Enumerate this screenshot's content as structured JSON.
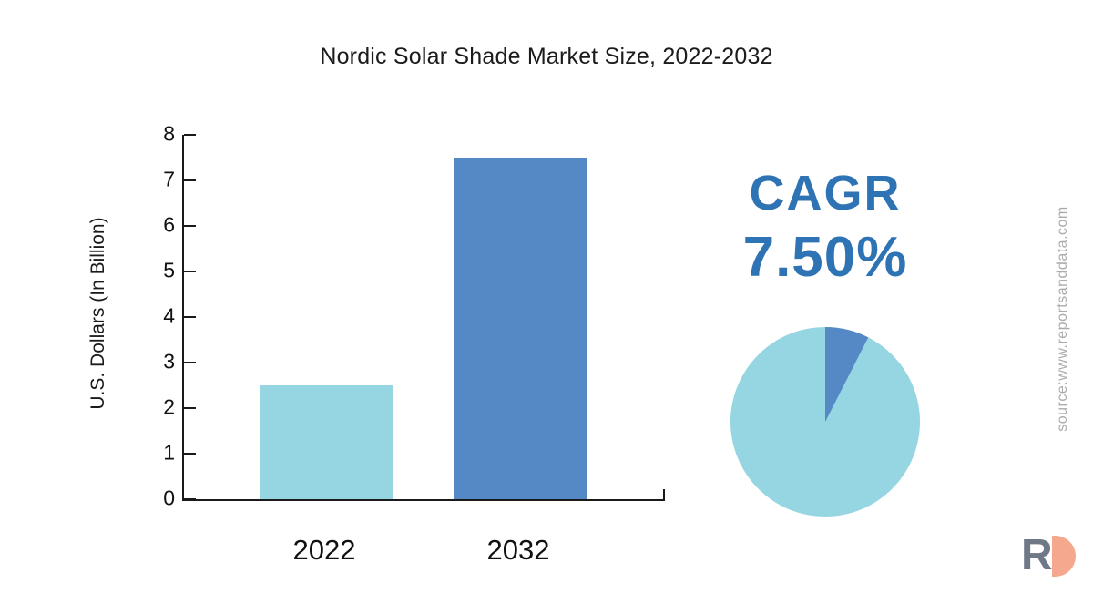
{
  "page": {
    "source_note": "source:www.reportsanddata.com",
    "logo": {
      "text": "R",
      "r_color": "#6E7886",
      "d_color": "#F4A98F"
    }
  },
  "chart_data": [
    {
      "type": "bar",
      "title": "Nordic Solar Shade Market Size, 2022-2032",
      "categories": [
        "2022",
        "2032"
      ],
      "values": [
        2.5,
        7.5
      ],
      "xlabel": "",
      "ylabel": "U.S. Dollars (In Billion)",
      "ylim": [
        0,
        8
      ],
      "yticks": [
        0,
        1,
        2,
        3,
        4,
        5,
        6,
        7,
        8
      ],
      "bar_colors": [
        "#96D5E2",
        "#5589C5"
      ],
      "grid": false,
      "legend": "none"
    },
    {
      "type": "pie",
      "values": [
        7.5,
        92.5
      ],
      "colors": [
        "#5589C5",
        "#96D5E2"
      ],
      "start_angle_deg": 0,
      "direction": "clockwise",
      "labels_shown": false
    }
  ],
  "cagr": {
    "label": "CAGR",
    "value": "7.50%",
    "color": "#2E74B5"
  }
}
